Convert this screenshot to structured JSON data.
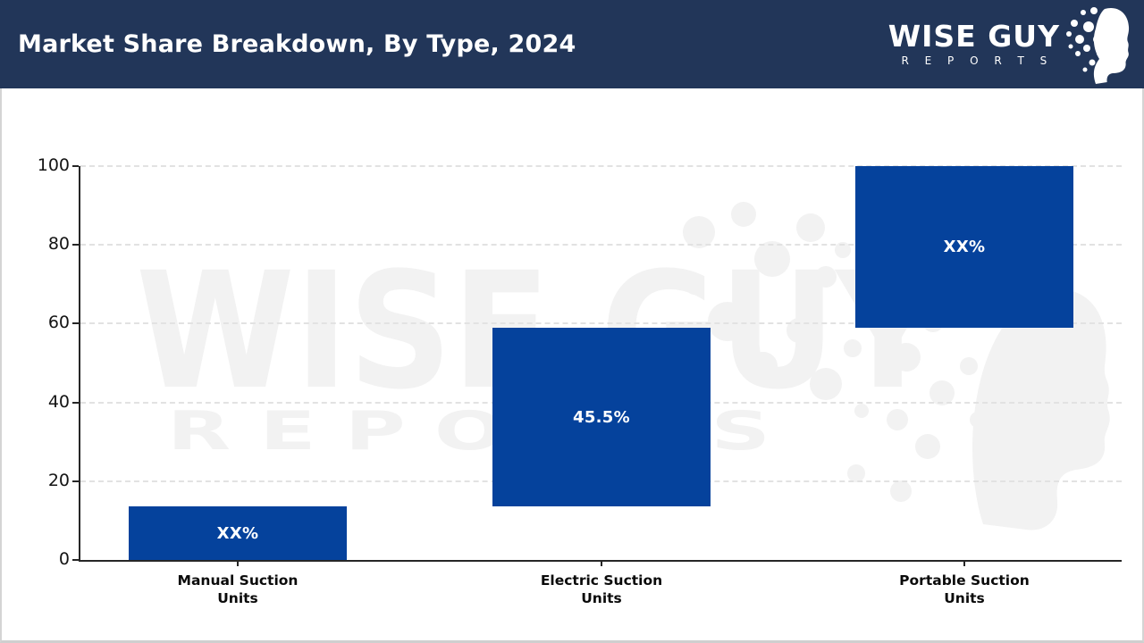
{
  "header": {
    "title": "Market Share Breakdown, By Type, 2024",
    "logo": {
      "line1": "WISE GUY",
      "line2": "R E P O R T S"
    }
  },
  "watermark": {
    "line1": "WISE GUY",
    "line2": "R E P O R T S"
  },
  "chart_data": {
    "type": "bar",
    "subtype": "waterfall",
    "title": "Market Share Breakdown, By Type, 2024",
    "categories": [
      "Manual Suction Units",
      "Electric Suction Units",
      "Portable Suction Units"
    ],
    "category_lines": [
      [
        "Manual Suction",
        "Units"
      ],
      [
        "Electric Suction",
        "Units"
      ],
      [
        "Portable Suction",
        "Units"
      ]
    ],
    "segments": [
      {
        "label": "Manual Suction Units",
        "start": 0,
        "end": 13.5,
        "value_label": "XX%"
      },
      {
        "label": "Electric Suction Units",
        "start": 13.5,
        "end": 59,
        "value_label": "45.5%"
      },
      {
        "label": "Portable Suction Units",
        "start": 59,
        "end": 100,
        "value_label": "XX%"
      }
    ],
    "yticks": [
      0,
      20,
      40,
      60,
      80,
      100
    ],
    "ylim": [
      0,
      100
    ],
    "xlabel": "",
    "ylabel": "",
    "grid": "horizontal-dashed",
    "legend": "none",
    "bar_color": "#05429C",
    "value_label_color": "#ffffff",
    "header_color": "#223659",
    "watermark_color": "#f2f2f2"
  }
}
